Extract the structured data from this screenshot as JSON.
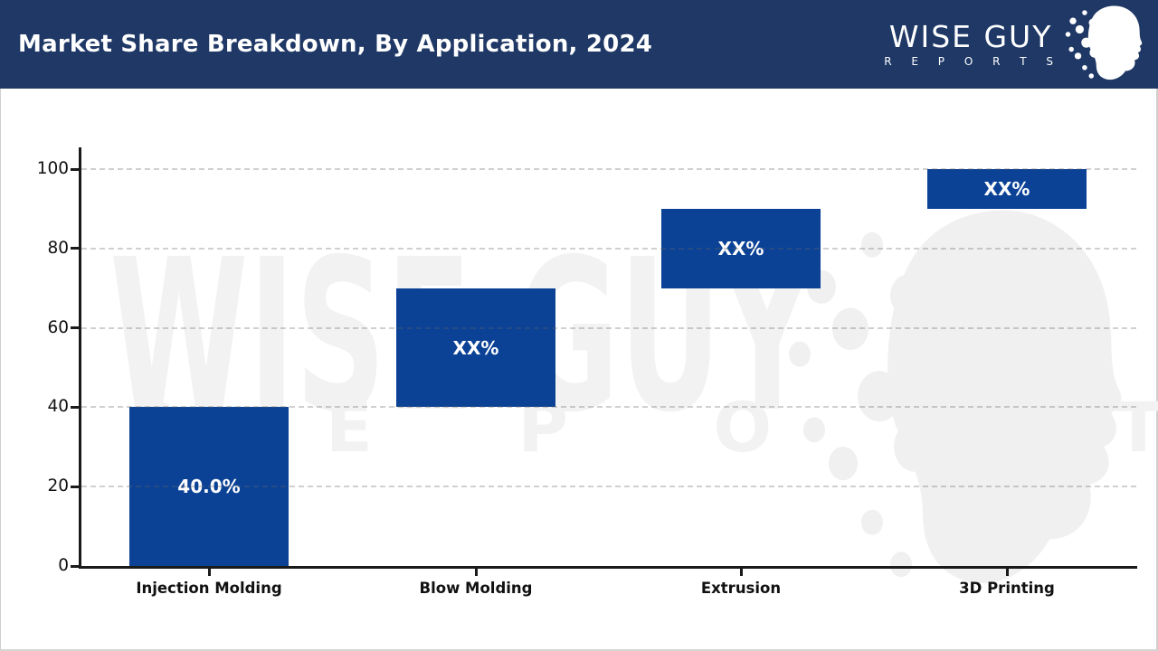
{
  "header": {
    "title": "Market Share Breakdown, By Application, 2024",
    "bg_color": "#1f3866",
    "logo": {
      "line1": "WISE GUY",
      "line2": "R E P O R T S"
    }
  },
  "watermark": {
    "line1": "WISE GUY",
    "line2": "R E P O R T S",
    "color": "#f2f2f2"
  },
  "chart_data": {
    "type": "bar",
    "subtype": "waterfall",
    "title": "Market Share Breakdown, By Application, 2024",
    "categories": [
      "Injection Molding",
      "Blow Molding",
      "Extrusion",
      "3D Printing"
    ],
    "bars": [
      {
        "category": "Injection Molding",
        "start": 0,
        "end": 40,
        "label": "40.0%"
      },
      {
        "category": "Blow Molding",
        "start": 40,
        "end": 70,
        "label": "XX%"
      },
      {
        "category": "Extrusion",
        "start": 70,
        "end": 90,
        "label": "XX%"
      },
      {
        "category": "3D Printing",
        "start": 90,
        "end": 100,
        "label": "XX%"
      }
    ],
    "xlabel": "",
    "ylabel": "",
    "yticks": [
      0,
      20,
      40,
      60,
      80,
      100
    ],
    "ylim": [
      0,
      105
    ],
    "grid": "horizontal-dashed",
    "legend": "none",
    "bar_color": "#0b4296",
    "bar_label_color": "#ffffff",
    "gridline_color": "#c9c9c9",
    "axis_color": "#1a1a1a"
  }
}
